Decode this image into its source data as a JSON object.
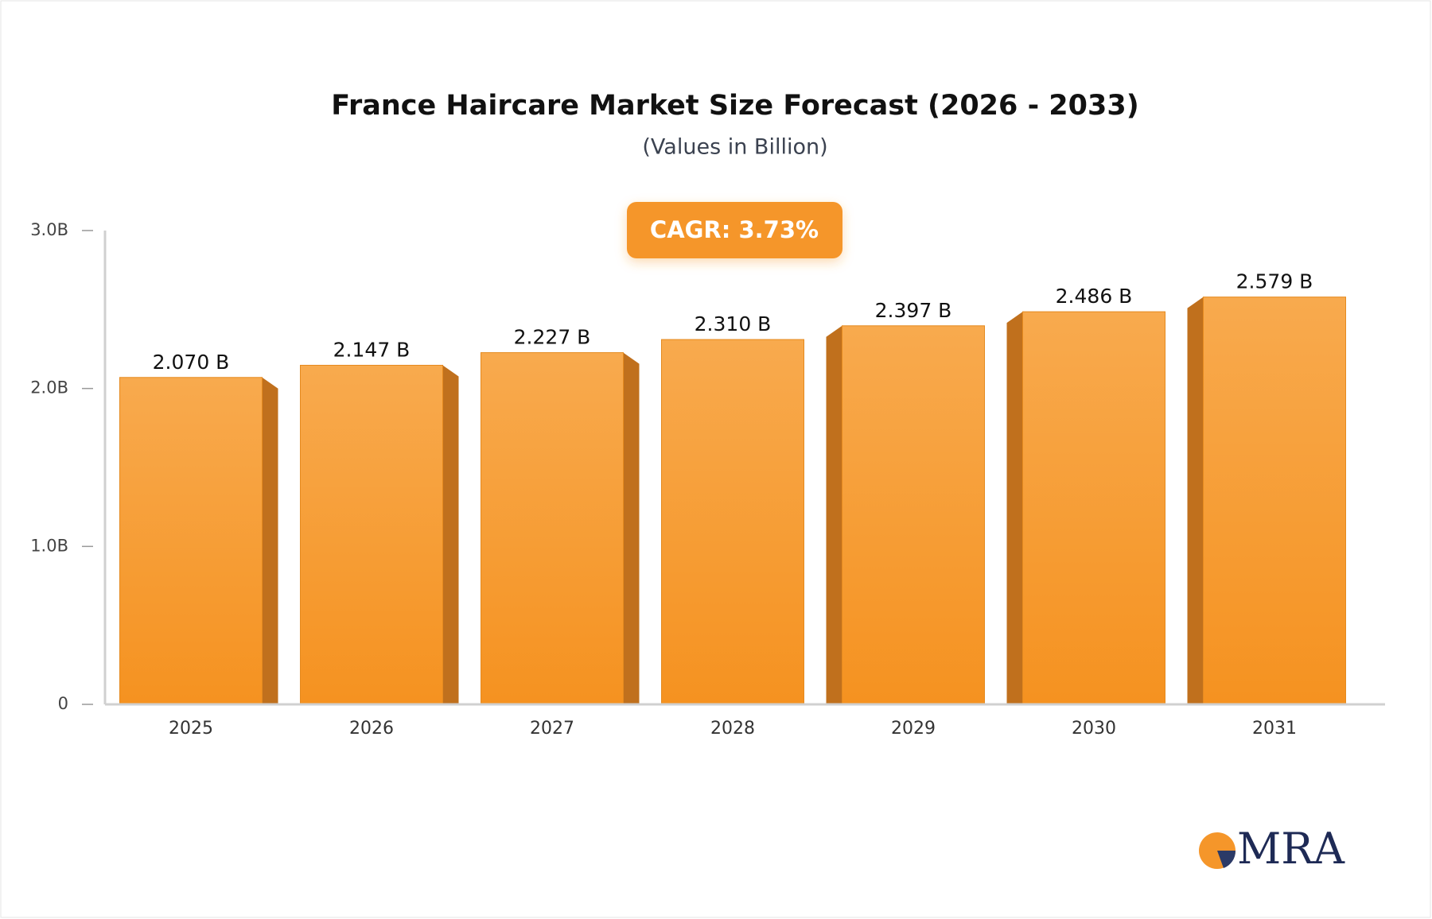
{
  "chart_data": {
    "type": "bar",
    "title": "France Haircare Market Size Forecast (2026 - 2033)",
    "subtitle": "(Values in Billion)",
    "annotation": "CAGR: 3.73%",
    "categories": [
      "2025",
      "2026",
      "2027",
      "2028",
      "2029",
      "2030",
      "2031"
    ],
    "values": [
      2.07,
      2.147,
      2.227,
      2.31,
      2.397,
      2.486,
      2.579
    ],
    "value_labels": [
      "2.070 B",
      "2.147 B",
      "2.227 B",
      "2.310 B",
      "2.397 B",
      "2.486 B",
      "2.579 B"
    ],
    "color": "#f59a2e",
    "ylim": [
      0,
      3
    ],
    "yticks": [
      0,
      {
        "value": 1,
        "label": "1.0B"
      },
      {
        "value": 2,
        "label": "2.0B"
      },
      {
        "value": 3,
        "label": "3.0B"
      }
    ],
    "grid": false
  },
  "logo": "MRA"
}
